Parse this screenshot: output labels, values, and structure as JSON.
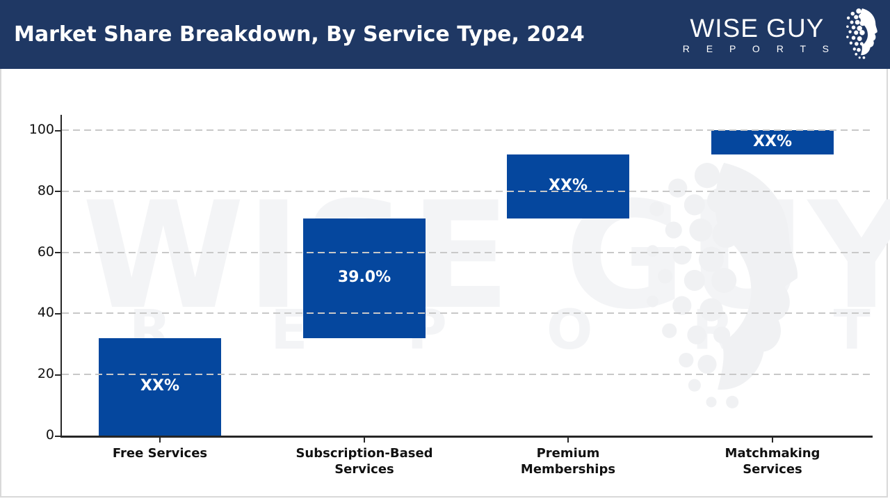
{
  "header": {
    "title": "Market Share Breakdown, By Service Type, 2024",
    "logo": {
      "line1": "WISE GUY",
      "line2": "R E P O R T S"
    }
  },
  "watermark": {
    "line1": "WISE GUY",
    "line2": "R E P O R T S"
  },
  "colors": {
    "header_bg": "#1f3864",
    "bar": "#05479e",
    "grid": "#c8c8c8",
    "axis": "#262626",
    "text": "#111111",
    "value_label": "#ffffff",
    "watermark": "#f3f4f6"
  },
  "chart_data": {
    "type": "bar",
    "subtype": "floating-waterfall",
    "title": "Market Share Breakdown, By Service Type, 2024",
    "categories": [
      "Free Services",
      "Subscription-Based Services",
      "Premium Memberships",
      "Matchmaking Services"
    ],
    "category_label_lines": [
      [
        "Free Services"
      ],
      [
        "Subscription-Based",
        "Services"
      ],
      [
        "Premium",
        "Memberships"
      ],
      [
        "Matchmaking",
        "Services"
      ]
    ],
    "bars": [
      {
        "category": "Free Services",
        "start": 0,
        "end": 32,
        "label": "XX%"
      },
      {
        "category": "Subscription-Based Services",
        "start": 32,
        "end": 71,
        "label": "39.0%"
      },
      {
        "category": "Premium Memberships",
        "start": 71,
        "end": 92,
        "label": "XX%"
      },
      {
        "category": "Matchmaking Services",
        "start": 92,
        "end": 100,
        "label": "XX%"
      }
    ],
    "yticks": [
      0,
      20,
      40,
      60,
      80,
      100
    ],
    "ylim": [
      0,
      105
    ],
    "grid": {
      "axis": "y",
      "style": "dashed"
    },
    "legend": "none"
  }
}
